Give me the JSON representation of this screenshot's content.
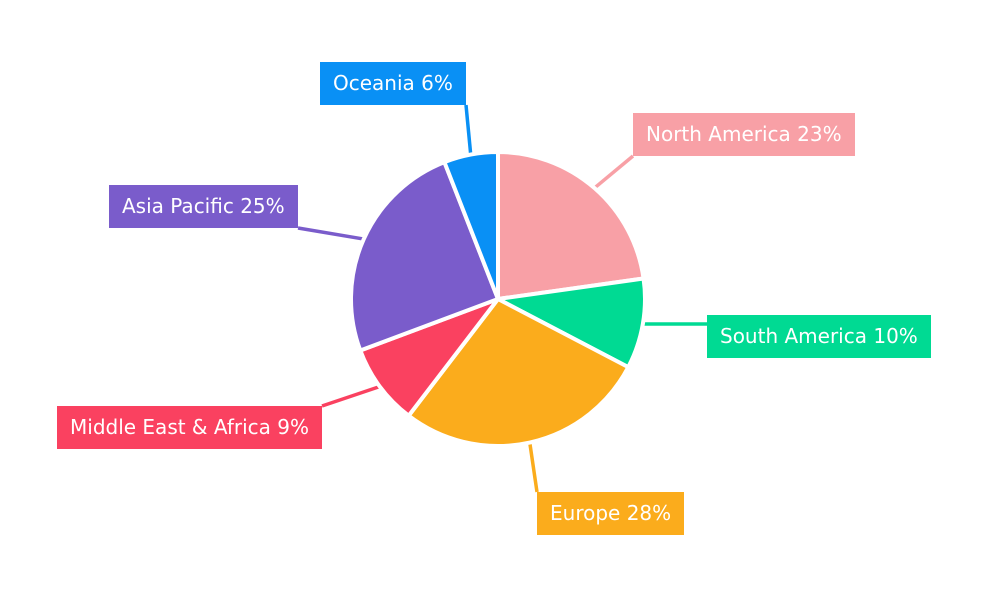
{
  "chart_data": {
    "type": "pie",
    "title": "",
    "categories": [
      "North America",
      "South America",
      "Europe",
      "Middle East & Africa",
      "Asia Pacific",
      "Oceania"
    ],
    "values": [
      23,
      10,
      28,
      9,
      25,
      6
    ],
    "unit": "%",
    "start_angle": "12-oclock",
    "direction": "clockwise",
    "background": "#FFFFFF",
    "separator_color": "#FFFFFF",
    "label_text_color": "#FFFFFF",
    "label_style": "colored-box-with-leader-line",
    "slices": [
      {
        "id": "north-america",
        "name": "North America",
        "value": 23,
        "label_text": "North America 23%",
        "color": "#F8A0A6"
      },
      {
        "id": "south-america",
        "name": "South America",
        "value": 10,
        "label_text": "South America 10%",
        "color": "#00DA93"
      },
      {
        "id": "europe",
        "name": "Europe",
        "value": 28,
        "label_text": "Europe 28%",
        "color": "#FBAC1C"
      },
      {
        "id": "middle-east-africa",
        "name": "Middle East & Africa",
        "value": 9,
        "label_text": "Middle East & Africa 9%",
        "color": "#FA4160"
      },
      {
        "id": "asia-pacific",
        "name": "Asia Pacific",
        "value": 25,
        "label_text": "Asia Pacific 25%",
        "color": "#7A5CCB"
      },
      {
        "id": "oceania",
        "name": "Oceania",
        "value": 6,
        "label_text": "Oceania 6%",
        "color": "#0990F5"
      }
    ]
  }
}
